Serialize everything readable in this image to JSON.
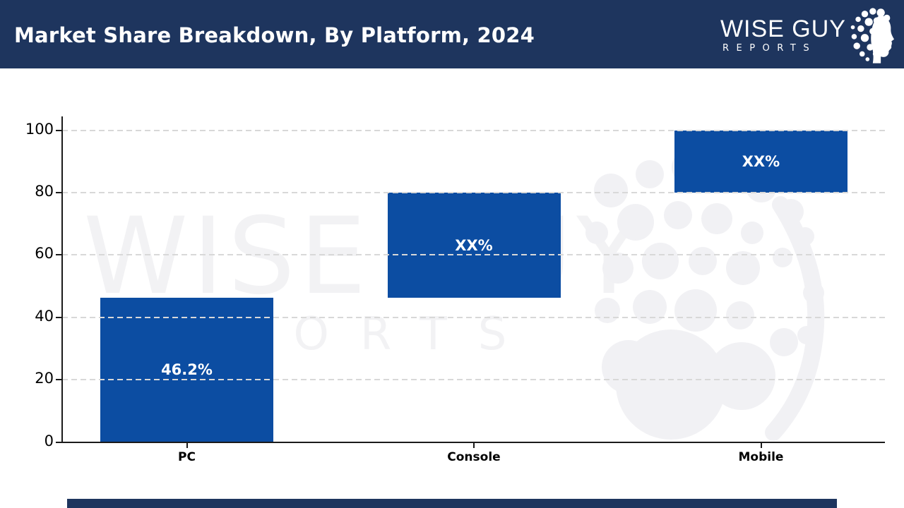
{
  "header": {
    "title": "Market Share Breakdown, By Platform, 2024"
  },
  "logo": {
    "wordmark": "WISE GUY",
    "subtext": "REPORTS"
  },
  "watermark": {
    "line1": "WISE GUY",
    "line2": "REPORTS"
  },
  "chart_data": {
    "type": "bar",
    "variant": "waterfall",
    "title": "Market Share Breakdown, By Platform, 2024",
    "categories": [
      "PC",
      "Console",
      "Mobile"
    ],
    "segments": [
      {
        "category": "PC",
        "start": 0,
        "end": 46.2,
        "label": "46.2%"
      },
      {
        "category": "Console",
        "start": 46.2,
        "end": 80,
        "label": "XX%"
      },
      {
        "category": "Mobile",
        "start": 80,
        "end": 100,
        "label": "XX%"
      }
    ],
    "xlabel": "",
    "ylabel": "",
    "yticks": [
      0,
      20,
      40,
      60,
      80,
      100
    ],
    "ylim": [
      0,
      105
    ],
    "grid": {
      "axis": "y",
      "style": "dashed",
      "color": "#d8d8d8",
      "drawn_over_bars": true
    },
    "bar_color": "#0c4da2",
    "bar_label_color": "#ffffff",
    "legend": "none"
  },
  "colors": {
    "header_bg": "#1e355e",
    "footer_bg": "#1e355e",
    "bar": "#0c4da2",
    "watermark": "#f2f2f4"
  }
}
